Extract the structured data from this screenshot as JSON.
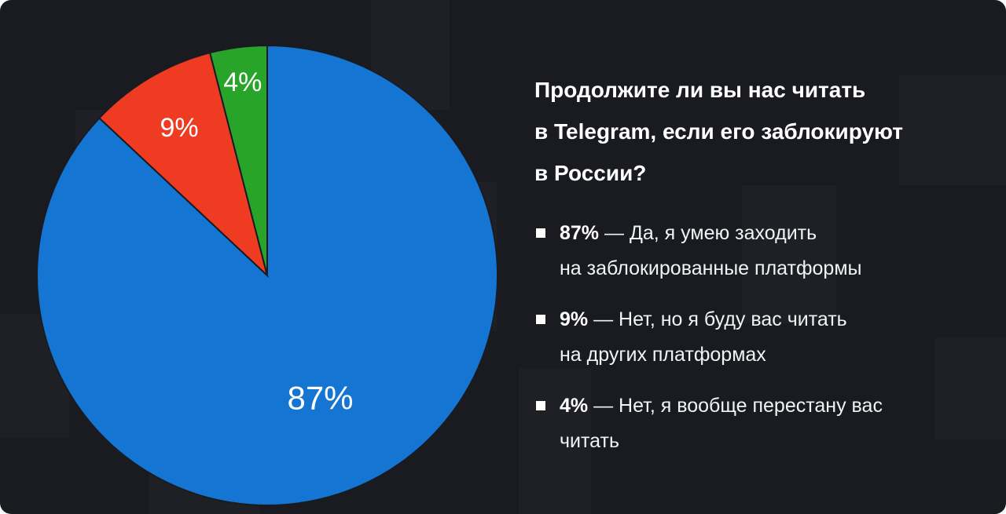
{
  "page": {
    "background_color": "#191b21",
    "text_color": "#f6f7f9"
  },
  "question": {
    "lines": [
      "Продолжите ли вы нас читать",
      "в Telegram, если его заблокируют",
      "в России?"
    ]
  },
  "answers": {
    "items": [
      {
        "pct": "87%",
        "line1": "— Да, я умею заходить",
        "line2": "на заблокированные платформы"
      },
      {
        "pct": "9%",
        "line1": "— Нет, но я буду вас читать",
        "line2": "на других платформах"
      },
      {
        "pct": "4%",
        "line1": "— Нет, я вообще перестану вас",
        "line2": "читать"
      }
    ]
  },
  "chart_data": {
    "type": "pie",
    "title": "Продолжите ли вы нас читать в Telegram, если его заблокируют в России?",
    "slices": [
      {
        "label": "87%",
        "value": 87,
        "color": "#1475d2",
        "answer": "Да, я умею заходить на заблокированные платформы"
      },
      {
        "label": "9%",
        "value": 9,
        "color": "#ee3b22",
        "answer": "Нет, но я буду вас читать на других платформах"
      },
      {
        "label": "4%",
        "value": 4,
        "color": "#28a42a",
        "answer": "Нет, я вообще перестану вас читать"
      }
    ],
    "start_angle": "top",
    "direction": "clockwise",
    "stroke_color": "#191b21",
    "label_radius": [
      0.58,
      0.75,
      0.85
    ],
    "legend_position": "right",
    "legend_marker": "square"
  }
}
